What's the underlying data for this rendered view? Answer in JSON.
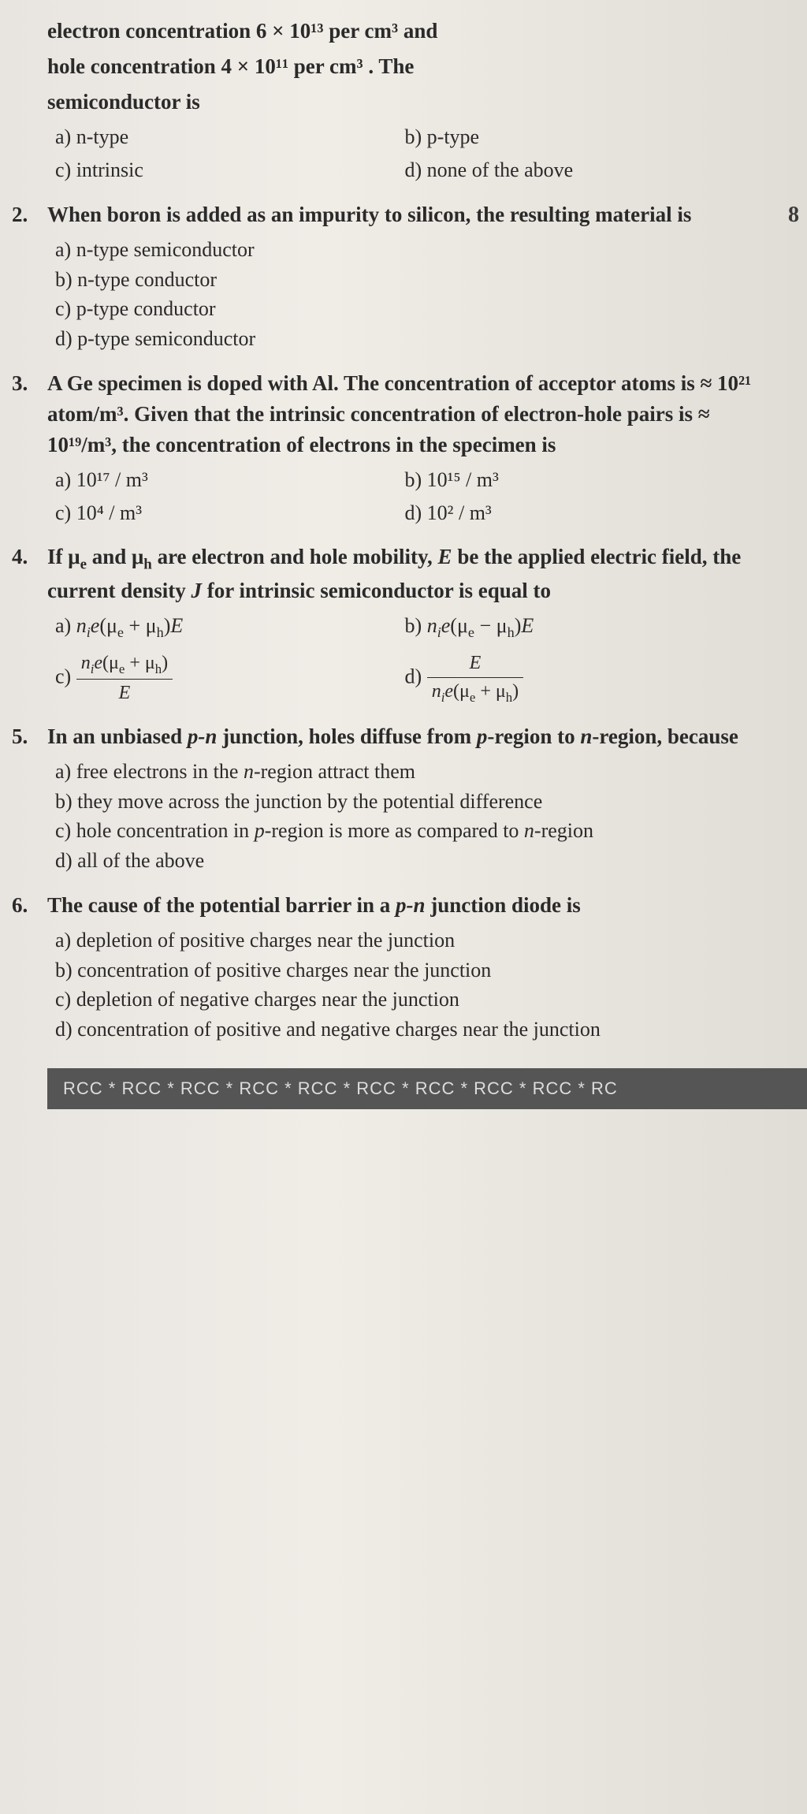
{
  "intro": {
    "line1": "electron concentration 6 × 10¹³ per cm³ and",
    "line2": "hole concentration 4 × 10¹¹ per cm³ . The",
    "line3": "semiconductor is"
  },
  "q1": {
    "opt_a": "a) n-type",
    "opt_b": "b) p-type",
    "opt_c": "c) intrinsic",
    "opt_d": "d) none of the above"
  },
  "q2": {
    "num": "2.",
    "text": "When boron is added as an impurity to silicon, the resulting material is",
    "margin": "8",
    "opt_a": "a) n-type semiconductor",
    "opt_b": "b) n-type conductor",
    "opt_c": "c) p-type conductor",
    "opt_d": "d) p-type semiconductor"
  },
  "q3": {
    "num": "3.",
    "text": "A Ge specimen is doped with Al. The concentration of acceptor atoms is ≈ 10²¹ atom/m³. Given that the intrinsic concentration of electron-hole pairs is ≈ 10¹⁹/m³, the concentration of electrons in the specimen is",
    "opt_a": "a) 10¹⁷ / m³",
    "opt_b": "b) 10¹⁵ / m³",
    "opt_c": "c) 10⁴ / m³",
    "opt_d": "d) 10² / m³"
  },
  "q4": {
    "num": "4.",
    "text_html": "If μ<sub>e</sub> and μ<sub>h</sub> are electron and hole mobility, <span class='italic'>E</span> be the applied electric field, the current density <span class='italic'>J</span> for intrinsic semiconductor is equal to",
    "opt_a_html": "a) <span class='italic'>n<sub>i</sub>e</span>(μ<sub>e</sub> + μ<sub>h</sub>)<span class='italic'>E</span>",
    "opt_b_html": "b) <span class='italic'>n<sub>i</sub>e</span>(μ<sub>e</sub> − μ<sub>h</sub>)<span class='italic'>E</span>",
    "opt_c_html": "c) <span class='frac'><span class='num'><span class='italic'>n<sub>i</sub>e</span>(μ<sub>e</sub> + μ<sub>h</sub>)</span><span class='den'><span class='italic'>E</span></span></span>",
    "opt_d_html": "d) <span class='frac'><span class='num'><span class='italic'>E</span></span><span class='den'><span class='italic'>n<sub>i</sub>e</span>(μ<sub>e</sub> + μ<sub>h</sub>)</span></span>"
  },
  "q5": {
    "num": "5.",
    "text_html": "In an unbiased <span class='italic'>p-n</span> junction, holes diffuse from <span class='italic'>p</span>-region to <span class='italic'>n</span>-region, because",
    "opt_a_html": "a) free electrons in the <span class='italic'>n</span>-region attract them",
    "opt_b": "b) they move across the junction by the potential difference",
    "opt_c_html": "c) hole concentration in <span class='italic'>p</span>-region is more as compared to <span class='italic'>n</span>-region",
    "opt_d": "d) all of the above"
  },
  "q6": {
    "num": "6.",
    "text_html": "The cause of the potential barrier in a <span class='italic'>p-n</span> junction diode is",
    "opt_a": "a) depletion of positive charges near the junction",
    "opt_b": "b) concentration of positive charges near the junction",
    "opt_c": "c) depletion of negative charges near the junction",
    "opt_d": "d) concentration of positive and negative charges near the junction"
  },
  "footer": "RCC * RCC * RCC * RCC * RCC * RCC * RCC * RCC * RCC * RC"
}
